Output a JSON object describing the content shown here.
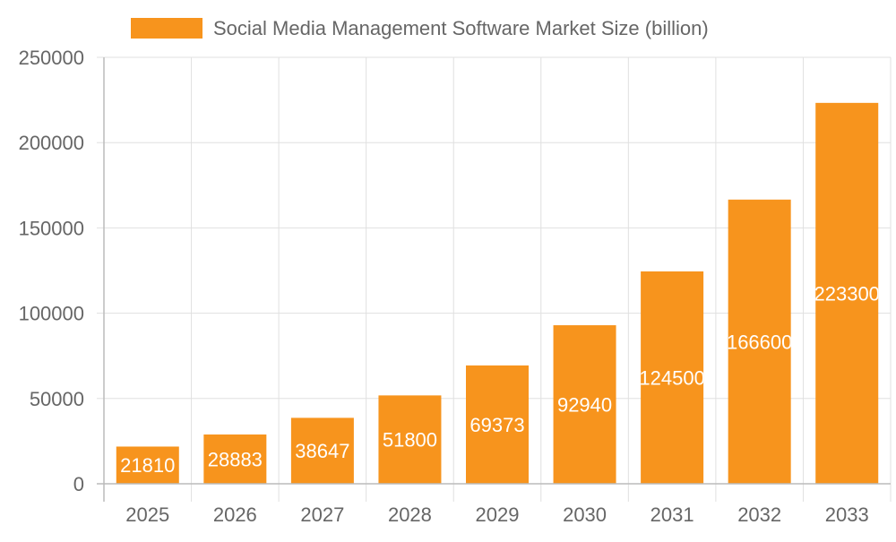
{
  "chart_data": {
    "type": "bar",
    "categories": [
      "2025",
      "2026",
      "2027",
      "2028",
      "2029",
      "2030",
      "2031",
      "2032",
      "2033"
    ],
    "series": [
      {
        "name": "Social Media Management Software Market Size (billion)",
        "values": [
          21810,
          28883,
          38647,
          51800,
          69373,
          92940,
          124500,
          166600,
          223300
        ]
      }
    ],
    "ylim": [
      0,
      250000
    ],
    "yticks": [
      "0",
      "50000",
      "100000",
      "150000",
      "200000",
      "250000"
    ],
    "xlabel": "",
    "ylabel": "",
    "grid": true,
    "legend": "top",
    "data_labels": "inside-center",
    "colors": {
      "bar": "#F7941D",
      "grid": "#E0E0E0",
      "text": "#666666",
      "label": "#FFFFFF"
    }
  }
}
